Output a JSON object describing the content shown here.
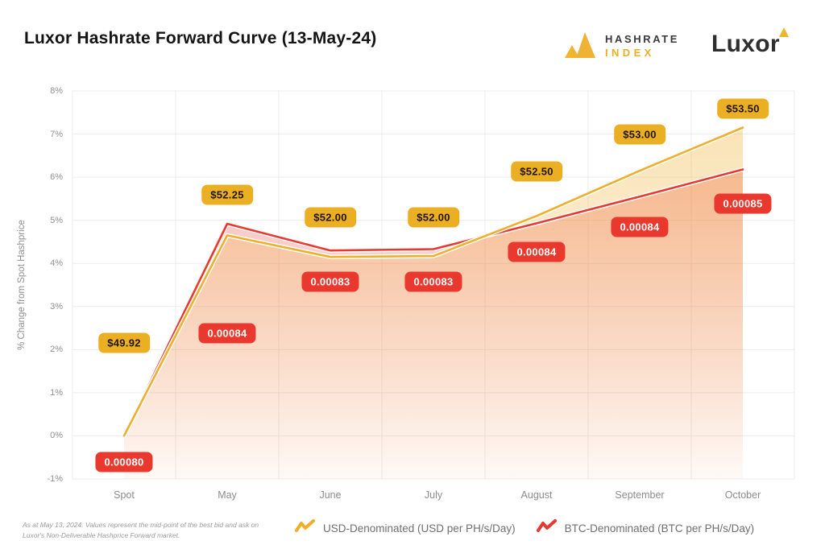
{
  "header": {
    "title": "Luxor Hashrate Forward Curve (13-May-24)",
    "hashrate_index_logo": {
      "line1": "HASHRATE",
      "line2": "INDEX"
    },
    "luxor_logo": "Luxor"
  },
  "colors": {
    "gold": "#F0AE2B",
    "gold_badge": "#EBAF24",
    "red": "#E9392E",
    "grid": "#ECECEC",
    "axis_text": "#8F8F8F"
  },
  "chart_data": {
    "type": "line",
    "title": "Luxor Hashrate Forward Curve (13-May-24)",
    "ylabel": "% Change from Spot Hashprice",
    "xlabel": "",
    "categories": [
      "Spot",
      "May",
      "June",
      "July",
      "August",
      "September",
      "October"
    ],
    "y_tick_labels": [
      "8%",
      "7%",
      "6%",
      "5%",
      "4%",
      "3%",
      "2%",
      "1%",
      "0%",
      "-1%"
    ],
    "ylim": [
      -1,
      8
    ],
    "grid": true,
    "legend_position": "bottom",
    "series": [
      {
        "name": "USD-Denominated (USD per PH/s/Day)",
        "color": "#F0AE2B",
        "badge_bg": "#EBAF24",
        "badge_text_color": "#201500",
        "values_pct": [
          0,
          4.65,
          4.15,
          4.17,
          5.1,
          6.15,
          7.15
        ],
        "point_labels": [
          "$49.92",
          "$52.25",
          "$52.00",
          "$52.00",
          "$52.50",
          "$53.00",
          "$53.50"
        ],
        "label_y_pct": [
          2.15,
          5.6,
          5.07,
          5.07,
          6.13,
          7.0,
          7.58
        ]
      },
      {
        "name": "BTC-Denominated (BTC per PH/s/Day)",
        "color": "#E9392E",
        "badge_bg": "#E9392E",
        "badge_text_color": "#FFFFFF",
        "values_pct": [
          0,
          4.92,
          4.3,
          4.33,
          4.93,
          5.55,
          6.18
        ],
        "point_labels": [
          "0.00080",
          "0.00084",
          "0.00083",
          "0.00083",
          "0.00084",
          "0.00084",
          "0.00085"
        ],
        "label_y_pct": [
          -0.6,
          2.38,
          3.57,
          3.57,
          4.26,
          4.84,
          5.38
        ]
      }
    ]
  },
  "footer": {
    "note": "As at May 13, 2024. Values represent the mid-point of the best bid and ask on Luxor's Non-Deliverable Hashprice Forward market."
  }
}
